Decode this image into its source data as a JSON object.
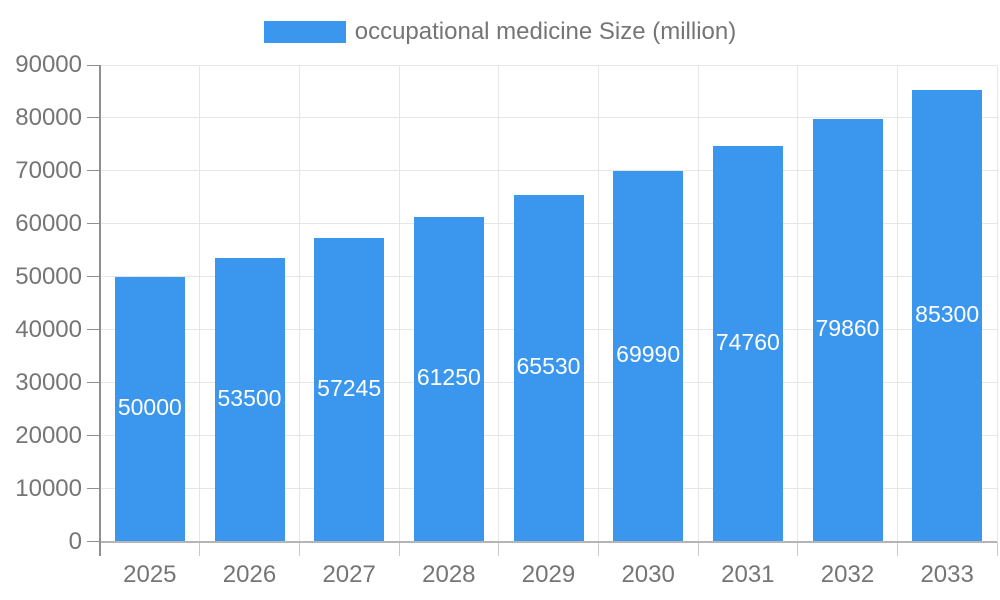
{
  "legend": {
    "label": "occupational medicine Size (million)"
  },
  "colors": {
    "bar": "#3B97EE",
    "grid": "#E6E6E6",
    "axis_line": "#8F8F8F",
    "zero_line": "#B5B5B5",
    "x_tick": "#C9C9C9",
    "axis_text": "#757575",
    "bar_label_text": "#FFFFFF",
    "background": "#FFFFFF"
  },
  "chart_data": {
    "type": "bar",
    "title": "occupational medicine Size (million)",
    "categories": [
      "2025",
      "2026",
      "2027",
      "2028",
      "2029",
      "2030",
      "2031",
      "2032",
      "2033"
    ],
    "values": [
      50000,
      53500,
      57245,
      61250,
      65530,
      69990,
      74760,
      79860,
      85300
    ],
    "series": [
      {
        "name": "occupational medicine Size (million)",
        "values": [
          50000,
          53500,
          57245,
          61250,
          65530,
          69990,
          74760,
          79860,
          85300
        ]
      }
    ],
    "xlabel": "",
    "ylabel": "",
    "ylim": [
      0,
      90000
    ],
    "ytick_interval": 10000,
    "yticks": [
      0,
      10000,
      20000,
      30000,
      40000,
      50000,
      60000,
      70000,
      80000,
      90000
    ],
    "grid": true,
    "legend_position": "top",
    "value_labels": "inside-center"
  }
}
